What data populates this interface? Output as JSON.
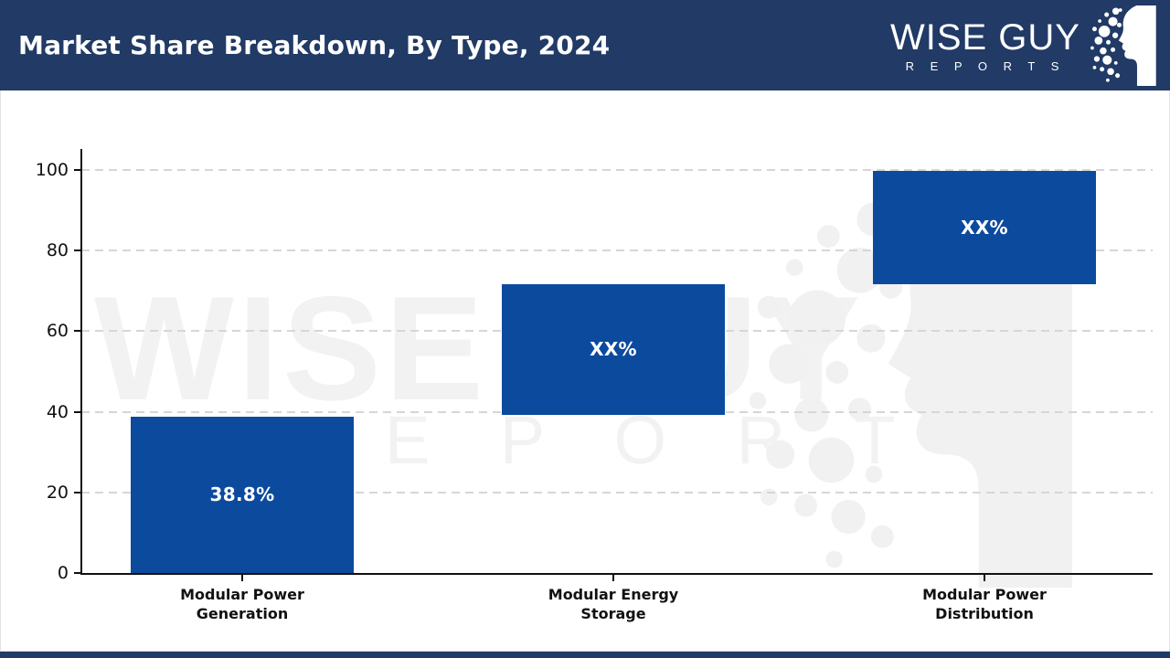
{
  "header": {
    "title": "Market Share Breakdown, By Type, 2024",
    "logo": {
      "name": "WISE GUY",
      "sub": "R E P O R T S"
    }
  },
  "watermark": {
    "line1": "WISE GUY",
    "line2": "R E P O R T S"
  },
  "colors": {
    "header_bg": "#213a66",
    "footer_bg": "#213a66",
    "bar_fill": "#0c4a9e",
    "bar_label": "#ffffff",
    "grid": "#d6d6d6",
    "axis": "#111111",
    "watermark": "#f2f2f2"
  },
  "chart_data": {
    "type": "bar",
    "subtype": "floating-segment-waterfall",
    "title": "Market Share Breakdown, By Type, 2024",
    "xlabel": "",
    "ylabel": "",
    "ylim": [
      0,
      105
    ],
    "yticks": [
      0,
      20,
      40,
      60,
      80,
      100
    ],
    "grid": "horizontal-dashed",
    "legend": "none",
    "bars": [
      {
        "category_lines": [
          "Modular Power",
          "Generation"
        ],
        "start": 0,
        "end": 38.8,
        "label": "38.8%"
      },
      {
        "category_lines": [
          "Modular Energy",
          "Storage"
        ],
        "start": 39.3,
        "end": 71.7,
        "label": "XX%"
      },
      {
        "category_lines": [
          "Modular Power",
          "Distribution"
        ],
        "start": 71.7,
        "end": 99.8,
        "label": "XX%"
      }
    ]
  }
}
